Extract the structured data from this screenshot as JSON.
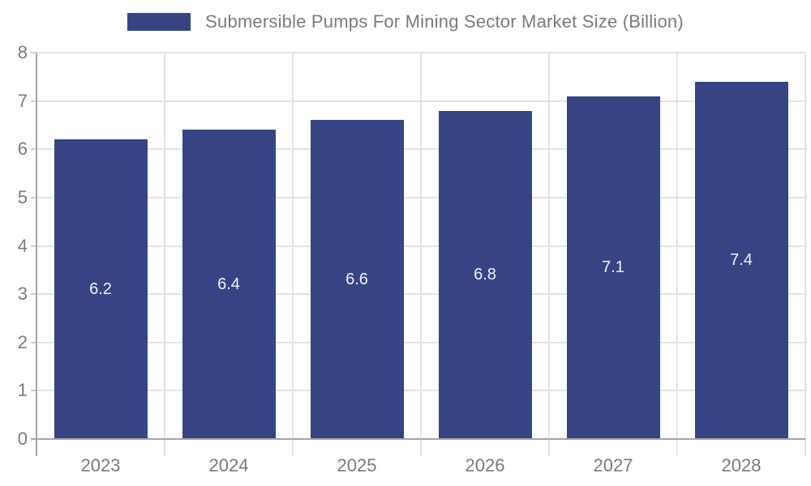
{
  "chart_data": {
    "type": "bar",
    "title": "Submersible Pumps For Mining Sector Market Size (Billion)",
    "legend": [
      {
        "label": "Submersible Pumps For Mining Sector Market Size (Billion)",
        "color": "#354584"
      }
    ],
    "legend_position": "top-center",
    "categories": [
      "2023",
      "2024",
      "2025",
      "2026",
      "2027",
      "2028"
    ],
    "values": [
      6.2,
      6.4,
      6.6,
      6.8,
      7.1,
      7.4
    ],
    "value_labels": [
      "6.2",
      "6.4",
      "6.6",
      "6.8",
      "7.1",
      "7.4"
    ],
    "xlabel": "",
    "ylabel": "",
    "ylim": [
      0,
      8
    ],
    "ytick_labels": [
      "0",
      "1",
      "2",
      "3",
      "4",
      "5",
      "6",
      "7",
      "8"
    ],
    "grid": true,
    "colors": {
      "bar": "#354584",
      "bar_value_text": "#f2f2f2",
      "axis_text": "#7a7a7a",
      "title_text": "#7b7b7b",
      "gridline": "#e3e3e3",
      "axis_line": "#a5a5a5",
      "background": "#ffffff"
    }
  }
}
